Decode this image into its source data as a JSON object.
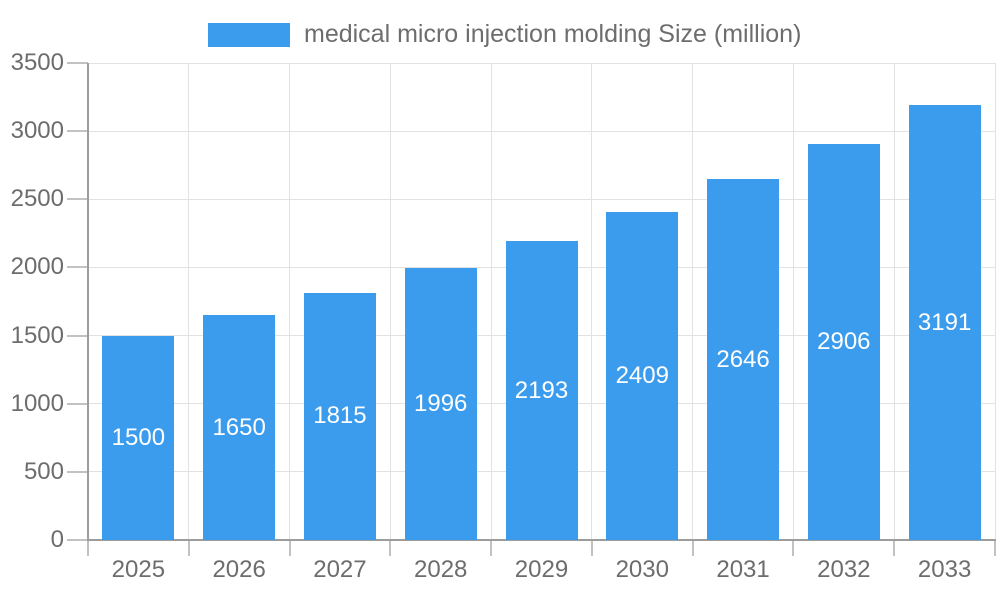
{
  "chart_data": {
    "type": "bar",
    "title": "medical micro injection molding Size (million)",
    "legend_label": "medical micro injection molding Size (million)",
    "legend_position": "top",
    "categories": [
      "2025",
      "2026",
      "2027",
      "2028",
      "2029",
      "2030",
      "2031",
      "2032",
      "2033"
    ],
    "values": [
      1500,
      1650,
      1815,
      1996,
      2193,
      2409,
      2646,
      2906,
      3191
    ],
    "xlabel": "",
    "ylabel": "",
    "ylim": [
      0,
      3500
    ],
    "ytick_step": 500,
    "yticks": [
      0,
      500,
      1000,
      1500,
      2000,
      2500,
      3000,
      3500
    ],
    "grid": true,
    "bar_color": "#3b9cee",
    "value_label_color": "#ffffff",
    "axis_text_color": "#6d6d6d",
    "gridline_color": "#e2e2e2",
    "axis_line_color": "#9c9c9c"
  }
}
